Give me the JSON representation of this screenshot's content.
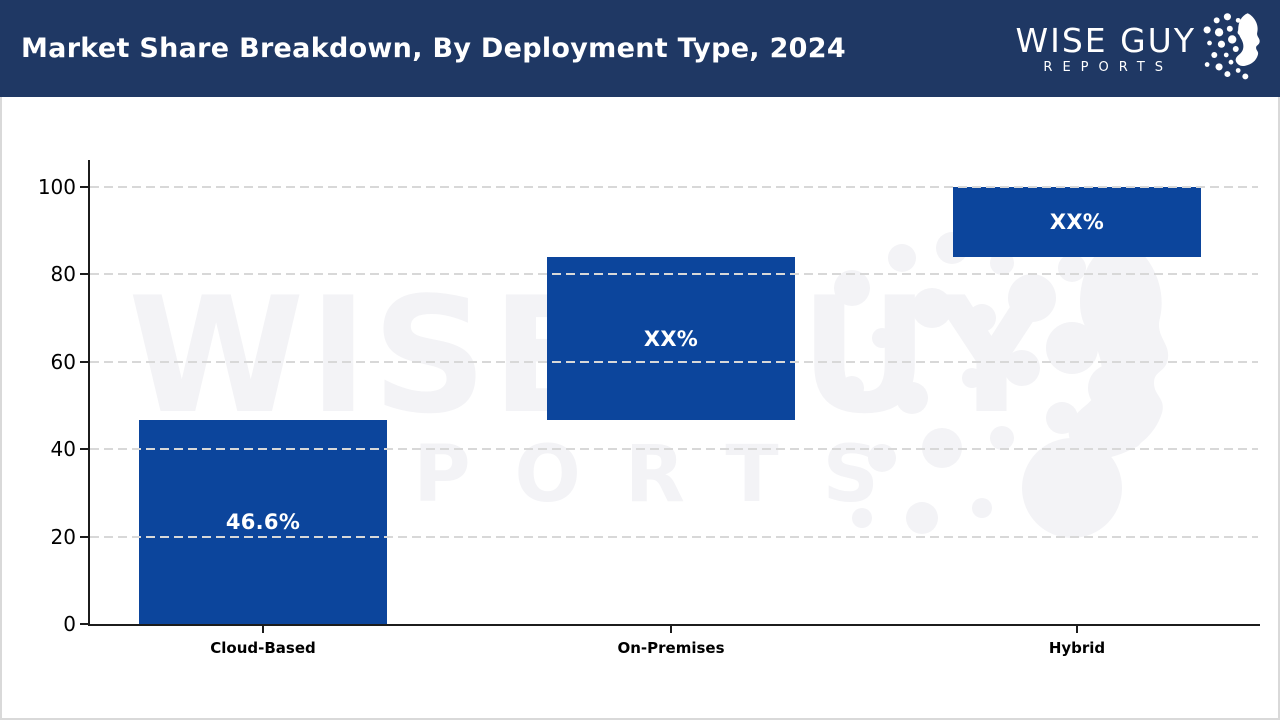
{
  "header": {
    "title": "Market Share Breakdown, By Deployment Type, 2024",
    "logo": {
      "line1": "WISE GUY",
      "line2": "REPORTS"
    }
  },
  "watermark": {
    "line1": "WISE GUY",
    "line2": "REPORTS"
  },
  "colors": {
    "header_bg": "#1f3864",
    "bar_color": "#0c459c",
    "grid_color": "#d8d8d8",
    "axis_color": "#1c1c1c",
    "watermark_color": "#f3f3f6",
    "title_color": "#ffffff",
    "bar_label_color": "#ffffff"
  },
  "chart_data": {
    "type": "bar",
    "subtype": "waterfall",
    "title": "Market Share Breakdown, By Deployment Type, 2024",
    "categories": [
      "Cloud-Based",
      "On-Premises",
      "Hybrid"
    ],
    "bars": [
      {
        "category": "Cloud-Based",
        "start": 0,
        "end": 46.6,
        "label": "46.6%",
        "value_hidden": false
      },
      {
        "category": "On-Premises",
        "start": 46.6,
        "end": 84.0,
        "label": "XX%",
        "value_hidden": true
      },
      {
        "category": "Hybrid",
        "start": 84.0,
        "end": 100,
        "label": "XX%",
        "value_hidden": true
      }
    ],
    "xlabel": "",
    "ylabel": "",
    "yticks": [
      0,
      20,
      40,
      60,
      80,
      100
    ],
    "ylim": [
      0,
      106
    ],
    "grid": "dashed horizontal at each ytick, drawn above bars",
    "legend": "none"
  }
}
